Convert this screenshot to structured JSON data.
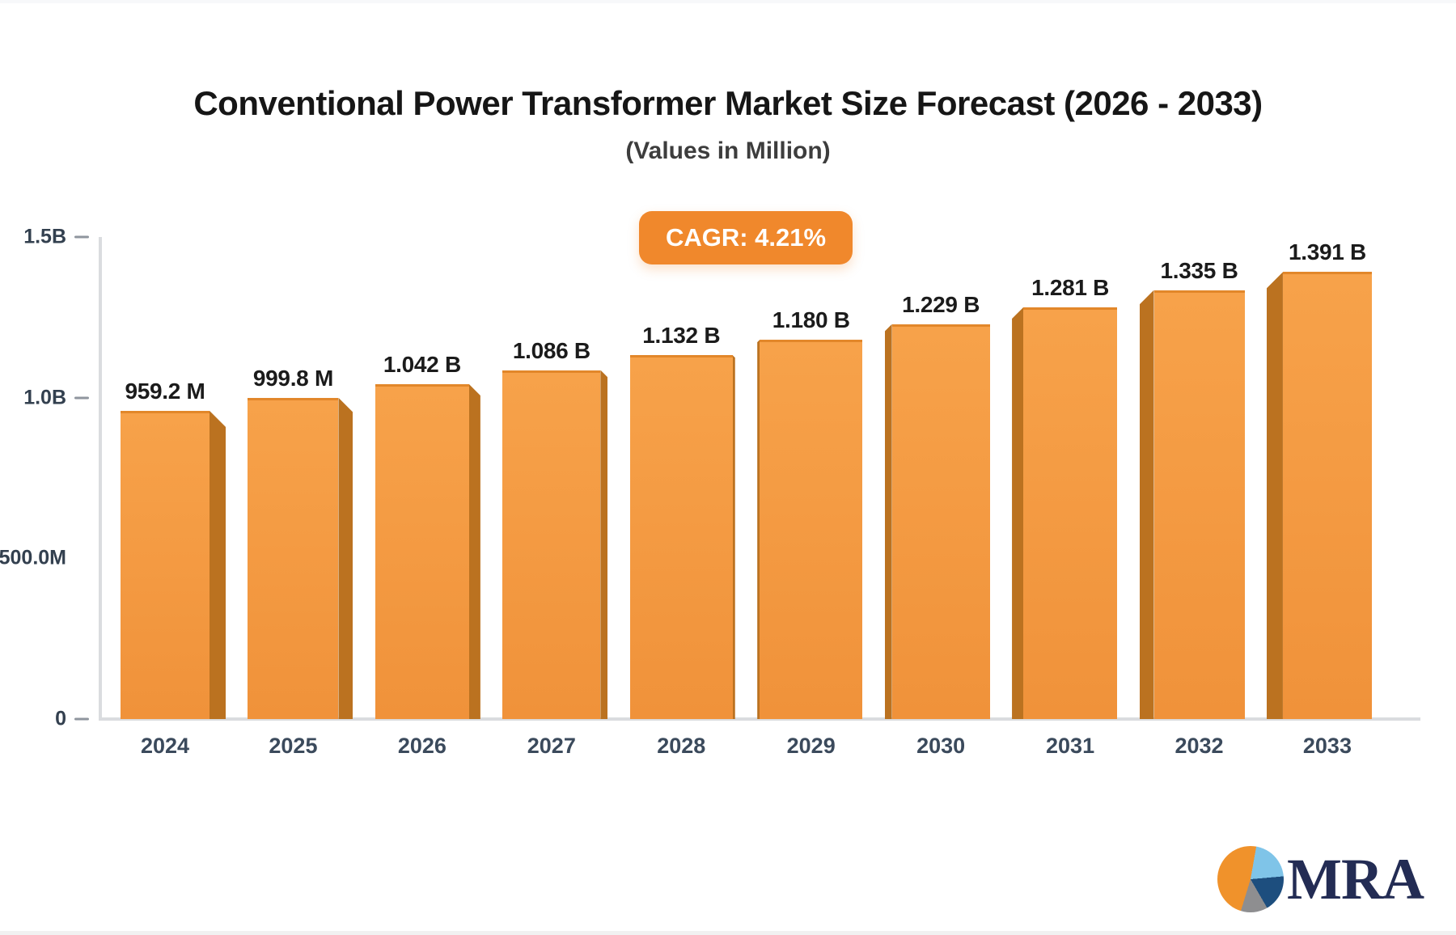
{
  "title": "Conventional Power Transformer Market Size Forecast (2026 - 2033)",
  "subtitle": "(Values in Million)",
  "cagr_badge": "CAGR: 4.21%",
  "colors": {
    "badge_bg": "#f0882c",
    "bar_gradient_top": "#f7a24a",
    "bar_gradient_bottom": "#f0923a",
    "bar_top_edge": "#e2872a",
    "bar_side": "#bb7220",
    "axis_line": "#dadcdf",
    "tick_dash": "#8f959e",
    "ytick_text": "#33404f",
    "xtick_text": "#3b4a5c",
    "value_text": "#1b1b1b",
    "logo_navy": "#232c54",
    "pie_orange": "#f0922b",
    "pie_blue": "#7fc4e8",
    "pie_navy": "#1d4e7e",
    "pie_gray": "#8e8e90"
  },
  "chart_data": {
    "type": "bar",
    "title": "Conventional Power Transformer Market Size Forecast (2026 - 2033)",
    "subtitle": "(Values in Million)",
    "cagr_percent": 4.21,
    "categories": [
      "2024",
      "2025",
      "2026",
      "2027",
      "2028",
      "2029",
      "2030",
      "2031",
      "2032",
      "2033"
    ],
    "values_million": [
      959.2,
      999.8,
      1042,
      1086,
      1132,
      1180,
      1229,
      1281,
      1335,
      1391
    ],
    "value_labels": [
      "959.2 M",
      "999.8 M",
      "1.042 B",
      "1.086 B",
      "1.132 B",
      "1.180 B",
      "1.229 B",
      "1.281 B",
      "1.335 B",
      "1.391 B"
    ],
    "xlabel": "",
    "ylabel": "",
    "ylim": [
      0,
      1500000000
    ],
    "y_ticks": [
      {
        "label": "1.5B",
        "value_million": 1500,
        "dash": true
      },
      {
        "label": "1.0B",
        "value_million": 1000,
        "dash": true
      },
      {
        "label": "500.0M",
        "value_million": 500,
        "dash": false
      },
      {
        "label": "0",
        "value_million": 0,
        "dash": true
      }
    ],
    "grid": false,
    "legend": "none",
    "bar_style": "3d-orange"
  },
  "logo": {
    "text": "MRA"
  }
}
